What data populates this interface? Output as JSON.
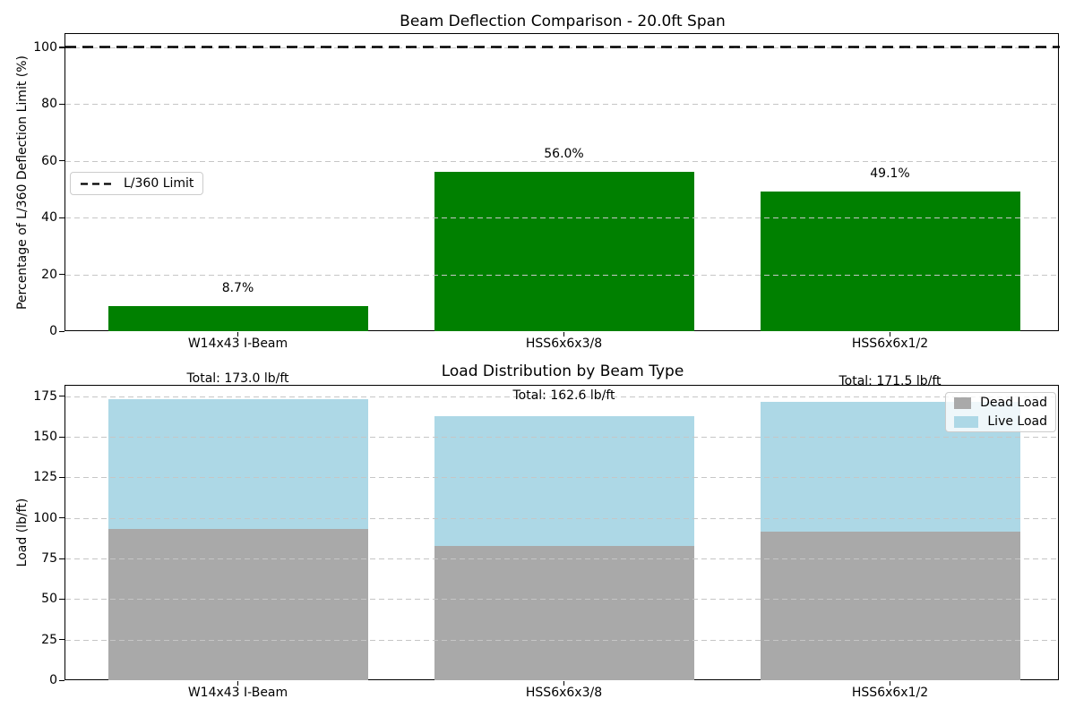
{
  "figure": {
    "background": "#ffffff"
  },
  "chart_data": [
    {
      "type": "bar",
      "title": "Beam Deflection Comparison - 20.0ft Span",
      "ylabel": "Percentage of L/360 Deflection Limit (%)",
      "xlabel": "",
      "categories": [
        "W14x43 I-Beam",
        "HSS6x6x3/8",
        "HSS6x6x1/2"
      ],
      "values": [
        8.7,
        56.0,
        49.1
      ],
      "bar_value_labels": [
        "8.7%",
        "56.0%",
        "49.1%"
      ],
      "bar_color": "#008000",
      "yticks": [
        0,
        20,
        40,
        60,
        80,
        100
      ],
      "ytick_labels": [
        "0",
        "20",
        "40",
        "60",
        "80",
        "100"
      ],
      "ylim": [
        0,
        105
      ],
      "grid": {
        "axis": "y",
        "style": "dashed",
        "color": "#c6c6c6"
      },
      "reference_line": {
        "value": 100,
        "style": "dashed",
        "color": "#000000",
        "label": "L/360 Limit"
      },
      "legend": {
        "position": "center left",
        "entries": [
          {
            "label": "L/360 Limit",
            "marker": "dashed-line",
            "color": "#000000"
          }
        ]
      }
    },
    {
      "type": "stacked-bar",
      "title": "Load Distribution by Beam Type",
      "ylabel": "Load (lb/ft)",
      "xlabel": "",
      "categories": [
        "W14x43 I-Beam",
        "HSS6x6x3/8",
        "HSS6x6x1/2"
      ],
      "series": [
        {
          "name": "Dead Load",
          "color": "#A9A9A9",
          "values": [
            93.0,
            82.6,
            91.5
          ]
        },
        {
          "name": "Live Load",
          "color": "#ADD8E6",
          "values": [
            80.0,
            80.0,
            80.0
          ]
        }
      ],
      "totals": [
        173.0,
        162.6,
        171.5
      ],
      "total_labels": [
        "Total: 173.0 lb/ft",
        "Total: 162.6 lb/ft",
        "Total: 171.5 lb/ft"
      ],
      "yticks": [
        0,
        25,
        50,
        75,
        100,
        125,
        150,
        175
      ],
      "ytick_labels": [
        "0",
        "25",
        "50",
        "75",
        "100",
        "125",
        "150",
        "175"
      ],
      "ylim": [
        0,
        182
      ],
      "grid": {
        "axis": "y",
        "style": "dashed",
        "color": "#c6c6c6"
      },
      "legend": {
        "position": "upper right",
        "entries": [
          {
            "label": "Dead Load",
            "color": "#A9A9A9"
          },
          {
            "label": "Live Load",
            "color": "#ADD8E6"
          }
        ]
      }
    }
  ]
}
